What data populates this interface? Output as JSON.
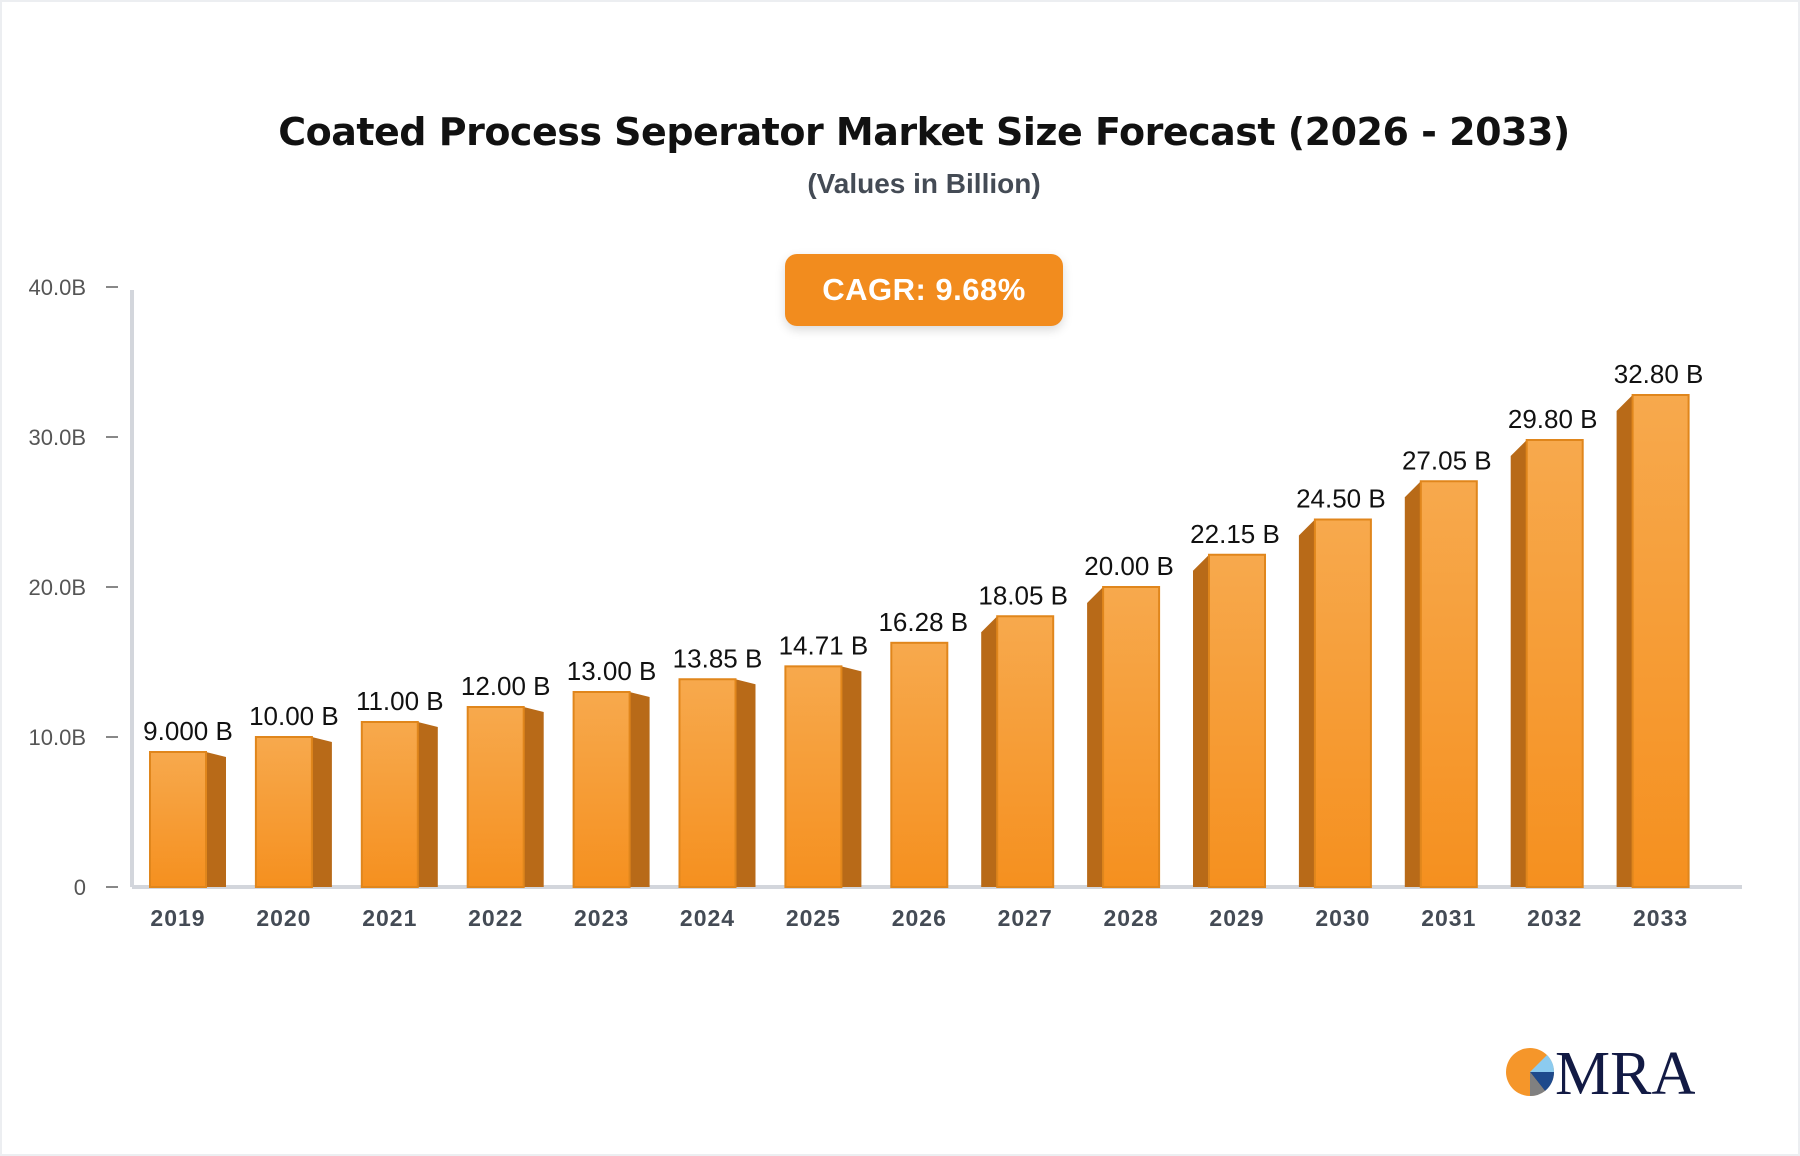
{
  "chart_data": {
    "type": "bar",
    "title": "Coated Process Seperator Market Size Forecast (2026 - 2033)",
    "subtitle": "(Values in Billion)",
    "annotation": "CAGR: 9.68%",
    "categories": [
      "2019",
      "2020",
      "2021",
      "2022",
      "2023",
      "2024",
      "2025",
      "2026",
      "2027",
      "2028",
      "2029",
      "2030",
      "2031",
      "2032",
      "2033"
    ],
    "values": [
      9.0,
      10.0,
      11.0,
      12.0,
      13.0,
      13.85,
      14.71,
      16.28,
      18.05,
      20.0,
      22.15,
      24.5,
      27.05,
      29.8,
      32.8
    ],
    "data_labels": [
      "9.000 B",
      "10.00 B",
      "11.00 B",
      "12.00 B",
      "13.00 B",
      "13.85 B",
      "14.71 B",
      "16.28 B",
      "18.05 B",
      "20.00 B",
      "22.15 B",
      "24.50 B",
      "27.05 B",
      "29.80 B",
      "32.80 B"
    ],
    "yticks": [
      0,
      10,
      20,
      30,
      40
    ],
    "ytick_labels": [
      "0",
      "10.0B",
      "20.0B",
      "30.0B",
      "40.0B"
    ],
    "ylim": [
      0,
      40
    ],
    "xlabel": "",
    "ylabel": "",
    "grid": false,
    "colors": {
      "bar_front": "#f5952a",
      "bar_side": "#b86a18",
      "cagr_badge": "#f28c1e"
    }
  },
  "logo": {
    "text": "MRA"
  }
}
